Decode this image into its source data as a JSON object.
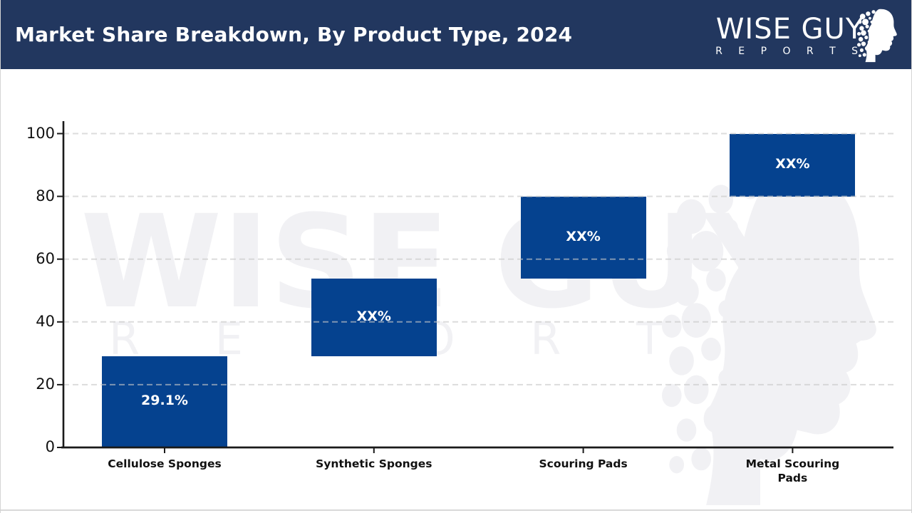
{
  "header": {
    "title": "Market Share Breakdown, By Product Type, 2024",
    "logo": {
      "name_line": "WISE GUY",
      "reports_line": "R E P O R T S"
    }
  },
  "watermark": {
    "name_line": "WISE GUY",
    "reports_line": "R E P O R T S"
  },
  "colors": {
    "header_bg": "#22375F",
    "bar_fill": "#05428F",
    "bar_label": "#FFFFFF",
    "axis": "#1a1a1a",
    "tick_label": "#111111",
    "gridline": "#C8C8C8",
    "watermark": "#F1F1F4"
  },
  "chart_data": {
    "type": "bar",
    "variant": "waterfall",
    "title": "Market Share Breakdown, By Product Type, 2024",
    "categories": [
      "Cellulose Sponges",
      "Synthetic Sponges",
      "Scouring Pads",
      "Metal Scouring Pads"
    ],
    "category_label_lines": [
      [
        "Cellulose Sponges"
      ],
      [
        "Synthetic Sponges"
      ],
      [
        "Scouring Pads"
      ],
      [
        "Metal Scouring",
        "Pads"
      ]
    ],
    "segments": [
      {
        "category": "Cellulose Sponges",
        "start": 0,
        "end": 29.1,
        "label": "29.1%"
      },
      {
        "category": "Synthetic Sponges",
        "start": 29.1,
        "end": 53.7,
        "label": "XX%"
      },
      {
        "category": "Scouring Pads",
        "start": 53.7,
        "end": 79.9,
        "label": "XX%"
      },
      {
        "category": "Metal Scouring Pads",
        "start": 79.9,
        "end": 100,
        "label": "XX%"
      }
    ],
    "yticks": [
      0,
      20,
      40,
      60,
      80,
      100
    ],
    "ylim": [
      0,
      104.5
    ],
    "xlabel": "",
    "ylabel": "",
    "grid": "horizontal-dashed",
    "legend": "none"
  }
}
